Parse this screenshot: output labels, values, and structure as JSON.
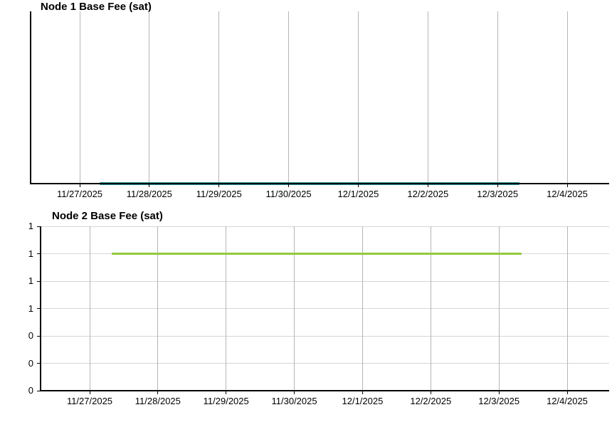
{
  "colors": {
    "background": "#ffffff",
    "axis": "#000000",
    "grid_vertical": "#b5b5b5",
    "grid_horizontal": "#d6d6d6",
    "text": "#000000",
    "node1_line": "#2e9a9e",
    "node2_line": "#94c83d"
  },
  "chart_data": [
    {
      "id": "node1-base-fee",
      "type": "line",
      "title": "Node 1 Base Fee (sat)",
      "x_tick_labels": [
        "11/27/2025",
        "11/28/2025",
        "11/29/2025",
        "11/30/2025",
        "12/1/2025",
        "12/2/2025",
        "12/3/2025",
        "12/4/2025"
      ],
      "y_tick_labels": [],
      "grid": {
        "vertical": true,
        "horizontal": false
      },
      "legend": "none",
      "series": [
        {
          "name": "Node 1 Base Fee",
          "color": "#2e9a9e",
          "style": "flat horizontal line lying on the x-axis baseline",
          "at_baseline": true,
          "x_start_tick_frac": 0.29,
          "x_end_tick_frac": 6.32
        }
      ]
    },
    {
      "id": "node2-base-fee",
      "type": "line",
      "title": "Node 2 Base Fee (sat)",
      "x_tick_labels": [
        "11/27/2025",
        "11/28/2025",
        "11/29/2025",
        "11/30/2025",
        "12/1/2025",
        "12/2/2025",
        "12/3/2025",
        "12/4/2025"
      ],
      "y_tick_labels": [
        "1",
        "1",
        "1",
        "1",
        "0",
        "0",
        "0"
      ],
      "y_axis_range": [
        0,
        1.2
      ],
      "y_tick_step": 0.2,
      "grid": {
        "vertical": true,
        "horizontal": true
      },
      "legend": "none",
      "series": [
        {
          "name": "Node 2 Base Fee",
          "color": "#94c83d",
          "value": 1,
          "x_start_tick_frac": 0.32,
          "x_end_tick_frac": 6.33
        }
      ]
    }
  ]
}
